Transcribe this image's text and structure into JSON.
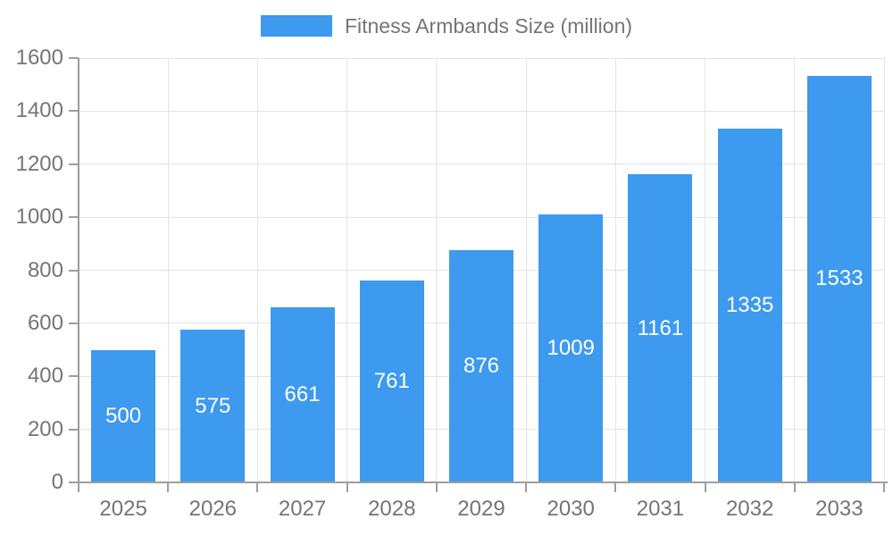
{
  "chart_data": {
    "type": "bar",
    "title": "",
    "legend": "Fitness Armbands Size (million)",
    "legend_position": "top",
    "categories": [
      "2025",
      "2026",
      "2027",
      "2028",
      "2029",
      "2030",
      "2031",
      "2032",
      "2033"
    ],
    "values": [
      500,
      575,
      661,
      761,
      876,
      1009,
      1161,
      1335,
      1533
    ],
    "xlabel": "",
    "ylabel": "",
    "ylim": [
      0,
      1600
    ],
    "y_ticks": [
      0,
      200,
      400,
      600,
      800,
      1000,
      1200,
      1400,
      1600
    ],
    "grid": true,
    "colors": {
      "bar": "#3D9AEE",
      "bar_label": "#ffffff",
      "axis_text": "#757575",
      "axis_line": "#9E9E9E",
      "grid_line": "#E4E4E4",
      "background": "#ffffff"
    }
  }
}
